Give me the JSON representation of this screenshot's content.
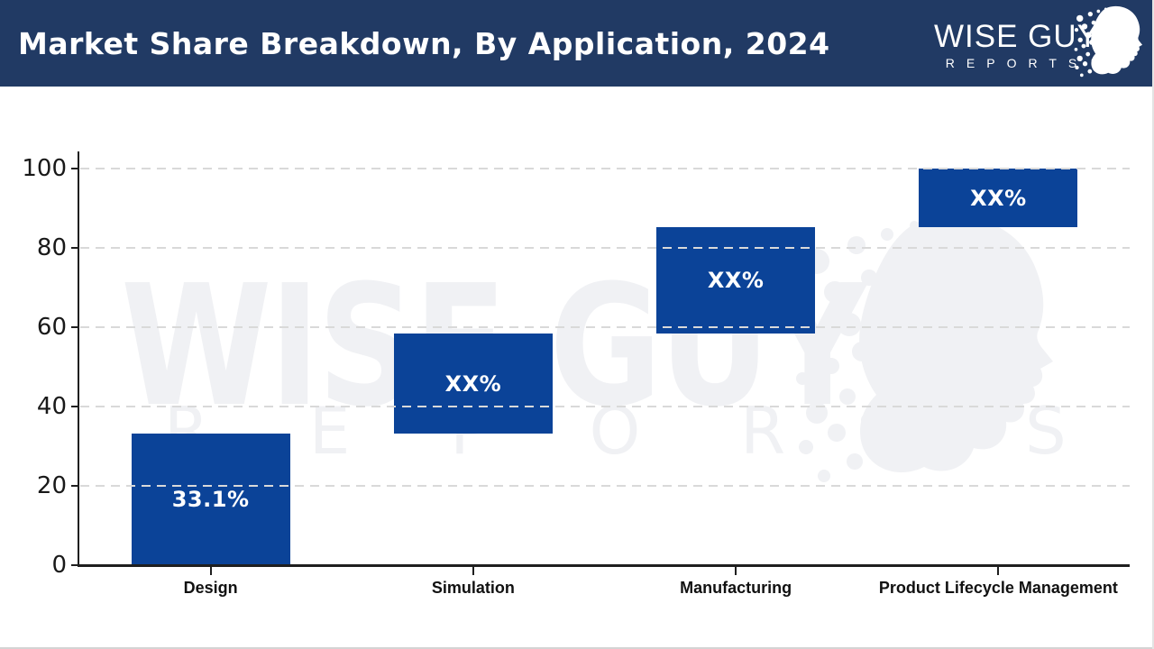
{
  "header": {
    "title": "Market Share Breakdown, By Application, 2024",
    "logo": {
      "name": "WISE GUY",
      "subtitle": "REPORTS"
    }
  },
  "watermark": {
    "name": "WISE GUY",
    "subtitle": "R E P O R T S"
  },
  "chart_data": {
    "type": "bar",
    "variant": "waterfall",
    "title": "Market Share Breakdown, By Application, 2024",
    "categories": [
      "Design",
      "Simulation",
      "Manufacturing",
      "Product Lifecycle Management"
    ],
    "segments": [
      {
        "category": "Design",
        "start": 0,
        "end": 33.1,
        "label": "33.1%"
      },
      {
        "category": "Simulation",
        "start": 33.1,
        "end": 58.4,
        "label": "XX%"
      },
      {
        "category": "Manufacturing",
        "start": 58.4,
        "end": 85.2,
        "label": "XX%"
      },
      {
        "category": "Product Lifecycle Management",
        "start": 85.2,
        "end": 100,
        "label": "XX%"
      }
    ],
    "xlabel": "",
    "ylabel": "",
    "yticks": [
      0,
      20,
      40,
      60,
      80,
      100
    ],
    "ylim": [
      0,
      105
    ],
    "grid": "horizontal-dashed",
    "legend": "none",
    "bar_value_labels_inside": true
  },
  "colors": {
    "header_bg": "#213a64",
    "background": "#ffffff",
    "bar": "#0b4398",
    "bar_label": "#ffffff",
    "grid": "#d9d9d9",
    "axis": "#1f1f1f",
    "tick_text": "#191919",
    "watermark": "#f0f1f4"
  }
}
